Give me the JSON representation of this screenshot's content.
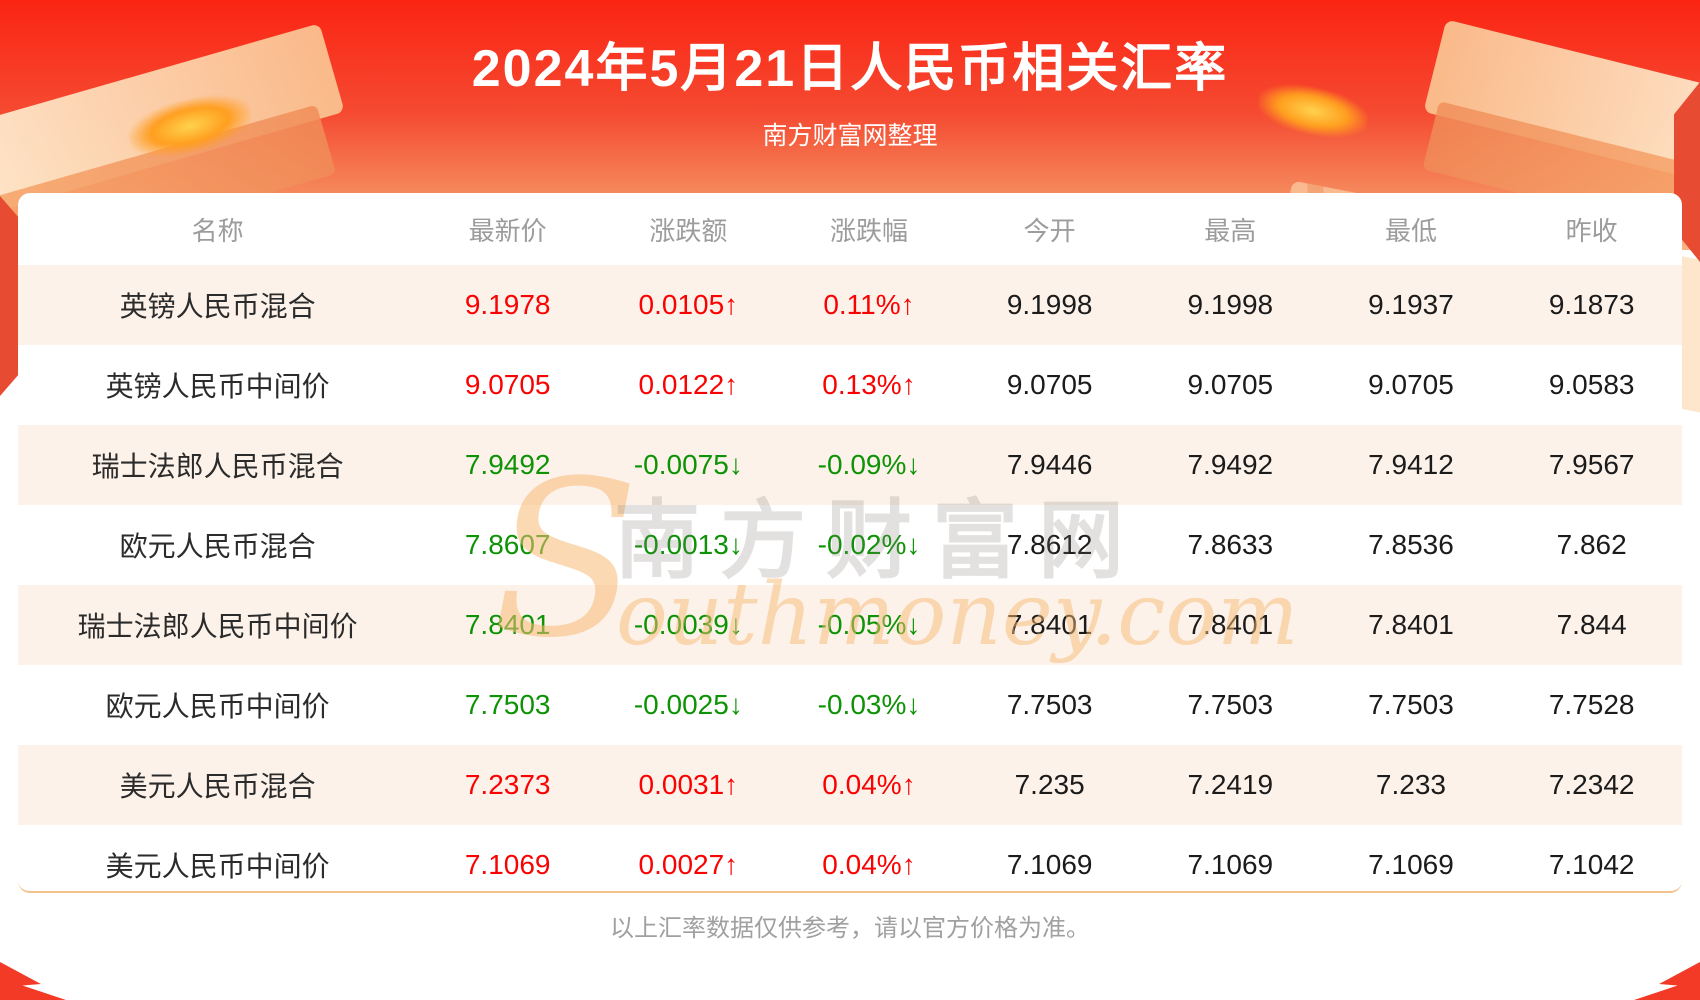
{
  "header": {
    "title": "2024年5月21日人民币相关汇率",
    "subtitle": "南方财富网整理"
  },
  "table": {
    "columns": [
      "名称",
      "最新价",
      "涨跌额",
      "涨跌幅",
      "今开",
      "最高",
      "最低",
      "昨收"
    ],
    "rows": [
      {
        "name": "英镑人民币混合",
        "latest": "9.1978",
        "change": "0.0105↑",
        "change_pct": "0.11%↑",
        "open": "9.1998",
        "high": "9.1998",
        "low": "9.1937",
        "prev_close": "9.1873",
        "direction": "up"
      },
      {
        "name": "英镑人民币中间价",
        "latest": "9.0705",
        "change": "0.0122↑",
        "change_pct": "0.13%↑",
        "open": "9.0705",
        "high": "9.0705",
        "low": "9.0705",
        "prev_close": "9.0583",
        "direction": "up"
      },
      {
        "name": "瑞士法郎人民币混合",
        "latest": "7.9492",
        "change": "-0.0075↓",
        "change_pct": "-0.09%↓",
        "open": "7.9446",
        "high": "7.9492",
        "low": "7.9412",
        "prev_close": "7.9567",
        "direction": "down"
      },
      {
        "name": "欧元人民币混合",
        "latest": "7.8607",
        "change": "-0.0013↓",
        "change_pct": "-0.02%↓",
        "open": "7.8612",
        "high": "7.8633",
        "low": "7.8536",
        "prev_close": "7.862",
        "direction": "down"
      },
      {
        "name": "瑞士法郎人民币中间价",
        "latest": "7.8401",
        "change": "-0.0039↓",
        "change_pct": "-0.05%↓",
        "open": "7.8401",
        "high": "7.8401",
        "low": "7.8401",
        "prev_close": "7.844",
        "direction": "down"
      },
      {
        "name": "欧元人民币中间价",
        "latest": "7.7503",
        "change": "-0.0025↓",
        "change_pct": "-0.03%↓",
        "open": "7.7503",
        "high": "7.7503",
        "low": "7.7503",
        "prev_close": "7.7528",
        "direction": "down"
      },
      {
        "name": "美元人民币混合",
        "latest": "7.2373",
        "change": "0.0031↑",
        "change_pct": "0.04%↑",
        "open": "7.235",
        "high": "7.2419",
        "low": "7.233",
        "prev_close": "7.2342",
        "direction": "up"
      },
      {
        "name": "美元人民币中间价",
        "latest": "7.1069",
        "change": "0.0027↑",
        "change_pct": "0.04%↑",
        "open": "7.1069",
        "high": "7.1069",
        "low": "7.1069",
        "prev_close": "7.1042",
        "direction": "up"
      }
    ]
  },
  "watermark": {
    "cn": "南方财富网",
    "en_initial": "S",
    "en_rest": "outhmoney.com"
  },
  "footer": {
    "note": "以上汇率数据仅供参考，请以官方价格为准。"
  },
  "colors": {
    "up": "#fa0202",
    "down": "#0e9306",
    "header_red_top": "#fb2413",
    "header_red_bottom": "#f8b588",
    "row_alt_bg": "#fcf2ea",
    "divider": "#f3c18d"
  },
  "chart_data": {
    "type": "table",
    "title": "2024年5月21日人民币相关汇率",
    "source": "南方财富网整理",
    "note": "以上汇率数据仅供参考，请以官方价格为准。",
    "columns": [
      "名称",
      "最新价",
      "涨跌额",
      "涨跌幅",
      "今开",
      "最高",
      "最低",
      "昨收"
    ],
    "rows": [
      [
        "英镑人民币混合",
        "9.1978",
        "0.0105↑",
        "0.11%↑",
        "9.1998",
        "9.1998",
        "9.1937",
        "9.1873"
      ],
      [
        "英镑人民币中间价",
        "9.0705",
        "0.0122↑",
        "0.13%↑",
        "9.0705",
        "9.0705",
        "9.0705",
        "9.0583"
      ],
      [
        "瑞士法郎人民币混合",
        "7.9492",
        "-0.0075↓",
        "-0.09%↓",
        "7.9446",
        "7.9492",
        "7.9412",
        "7.9567"
      ],
      [
        "欧元人民币混合",
        "7.8607",
        "-0.0013↓",
        "-0.02%↓",
        "7.8612",
        "7.8633",
        "7.8536",
        "7.862"
      ],
      [
        "瑞士法郎人民币中间价",
        "7.8401",
        "-0.0039↓",
        "-0.05%↓",
        "7.8401",
        "7.8401",
        "7.8401",
        "7.844"
      ],
      [
        "欧元人民币中间价",
        "7.7503",
        "-0.0025↓",
        "-0.03%↓",
        "7.7503",
        "7.7503",
        "7.7503",
        "7.7528"
      ],
      [
        "美元人民币混合",
        "7.2373",
        "0.0031↑",
        "0.04%↑",
        "7.235",
        "7.2419",
        "7.233",
        "7.2342"
      ],
      [
        "美元人民币中间价",
        "7.1069",
        "0.0027↑",
        "0.04%↑",
        "7.1069",
        "7.1069",
        "7.1069",
        "7.1042"
      ]
    ]
  }
}
